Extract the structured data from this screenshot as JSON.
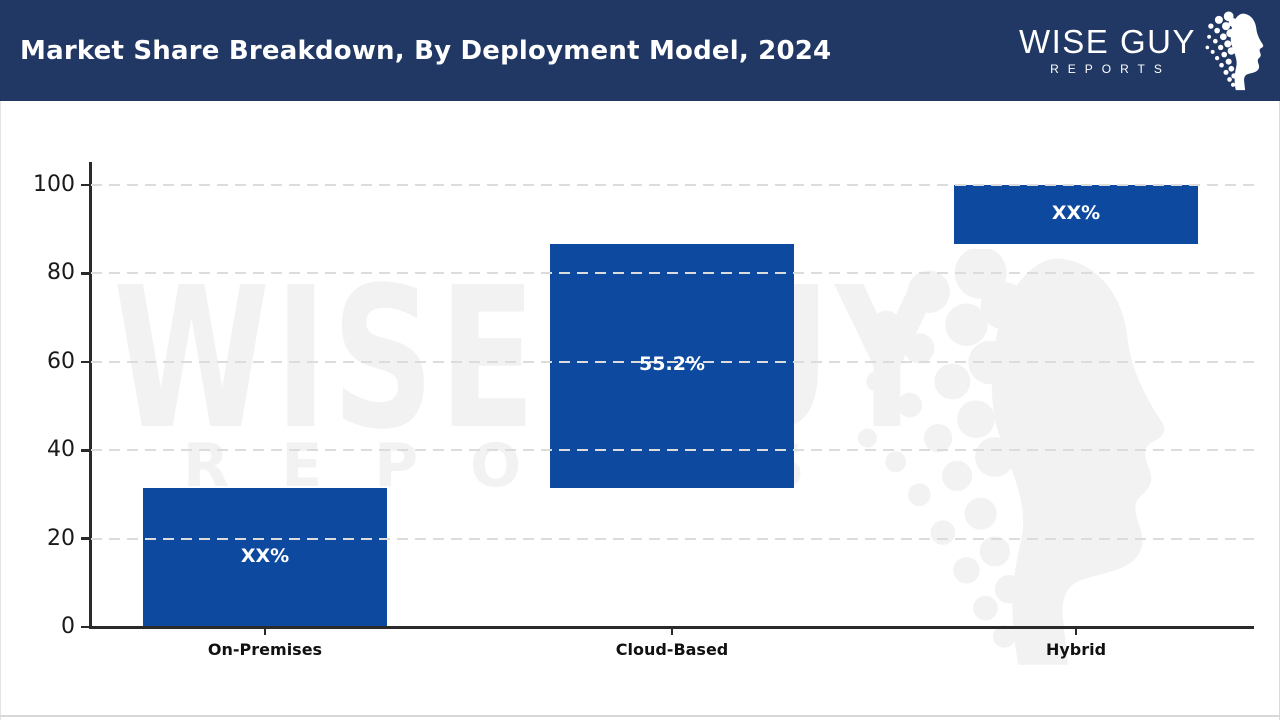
{
  "header": {
    "title": "Market Share Breakdown, By Deployment Model, 2024",
    "logo": {
      "brand": "WISE GUY",
      "sub": "REPORTS"
    }
  },
  "watermark": {
    "brand": "WISE GUY",
    "sub": "REPORTS"
  },
  "chart_data": {
    "type": "bar",
    "subtype": "waterfall",
    "title": "Market Share Breakdown, By Deployment Model, 2024",
    "categories": [
      "On-Premises",
      "Cloud-Based",
      "Hybrid"
    ],
    "segments": [
      {
        "category": "On-Premises",
        "start": 0,
        "end": 31.4,
        "value": 31.4,
        "label": "XX%"
      },
      {
        "category": "Cloud-Based",
        "start": 31.4,
        "end": 86.6,
        "value": 55.2,
        "label": "55.2%"
      },
      {
        "category": "Hybrid",
        "start": 86.6,
        "end": 100,
        "value": 13.4,
        "label": "XX%"
      }
    ],
    "ylim": [
      0,
      100
    ],
    "yticks": [
      0,
      20,
      40,
      60,
      80,
      100
    ],
    "xlabel": "",
    "ylabel": "",
    "grid": {
      "axis": "y",
      "style": "dashed",
      "drawn_above_bars": true
    },
    "legend": "none"
  },
  "colors": {
    "header_bg": "#213865",
    "bar": "#0d4a9f",
    "axis": "#2a2a2a",
    "grid": "#dcdcdc",
    "watermark": "#f2f2f3",
    "bar_label": "#ffffff"
  }
}
